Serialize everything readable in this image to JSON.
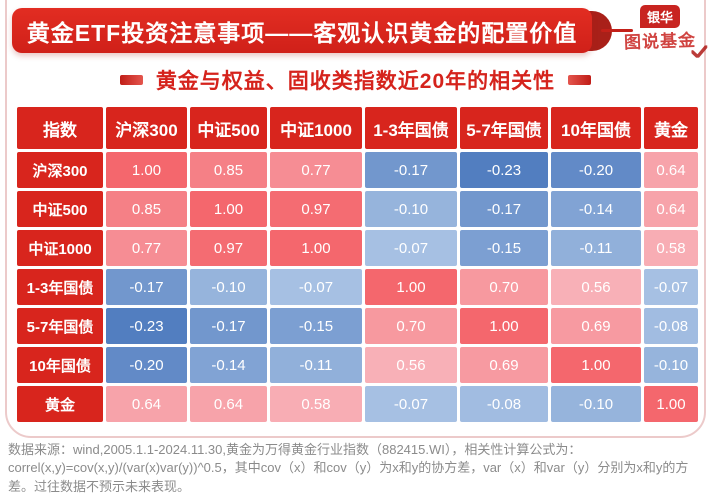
{
  "header": {
    "banner_title": "黄金ETF投资注意事项——客观认识黄金的配置价值",
    "logo": {
      "badge": "银华",
      "name": "图说基金"
    }
  },
  "subtitle": "黄金与权益、固收类指数近20年的相关性",
  "chart_data": {
    "type": "heatmap",
    "title": "黄金与权益、固收类指数近20年的相关性",
    "corner_label": "指数",
    "categories": [
      "沪深300",
      "中证500",
      "中证1000",
      "1-3年国债",
      "5-7年国债",
      "10年国债",
      "黄金"
    ],
    "rows": [
      "沪深300",
      "中证500",
      "中证1000",
      "1-3年国债",
      "5-7年国债",
      "10年国债",
      "黄金"
    ],
    "matrix": [
      [
        1.0,
        0.85,
        0.77,
        -0.17,
        -0.23,
        -0.2,
        0.64
      ],
      [
        0.85,
        1.0,
        0.97,
        -0.1,
        -0.17,
        -0.14,
        0.64
      ],
      [
        0.77,
        0.97,
        1.0,
        -0.07,
        -0.15,
        -0.11,
        0.58
      ],
      [
        -0.17,
        -0.1,
        -0.07,
        1.0,
        0.7,
        0.56,
        -0.07
      ],
      [
        -0.23,
        -0.17,
        -0.15,
        0.7,
        1.0,
        0.69,
        -0.08
      ],
      [
        -0.2,
        -0.14,
        -0.11,
        0.56,
        0.69,
        1.0,
        -0.1
      ],
      [
        0.64,
        0.64,
        0.58,
        -0.07,
        -0.08,
        -0.1,
        1.0
      ]
    ],
    "value_decimals": 2,
    "palette": {
      "header_red": "#d8251d",
      "positive_min_value": 0.56,
      "positive_min_color": "#f8b0b7",
      "positive_max_value": 1.0,
      "positive_max_color": "#f4676d",
      "negative_min_value": 0.07,
      "negative_min_color": "#a6c0e3",
      "negative_max_value": 0.23,
      "negative_max_color": "#527ec0"
    }
  },
  "footer": {
    "source_text": "数据来源：wind,2005.1.1-2024.11.30,黄金为万得黄金行业指数（882415.WI），相关性计算公式为：correl(x,y)=cov(x,y)/(var(x)var(y))^0.5，其中cov（x）和cov（y）为x和y的协方差，var（x）和var（y）分别为x和y的方差。过往数据不预示未来表现。"
  },
  "colors": {
    "brand_red": "#d8251d",
    "banner_dark_red": "#a92019",
    "subtitle_red": "#d5231c",
    "frame_pink": "#eccaca",
    "footer_gray": "#8b8b8b"
  }
}
